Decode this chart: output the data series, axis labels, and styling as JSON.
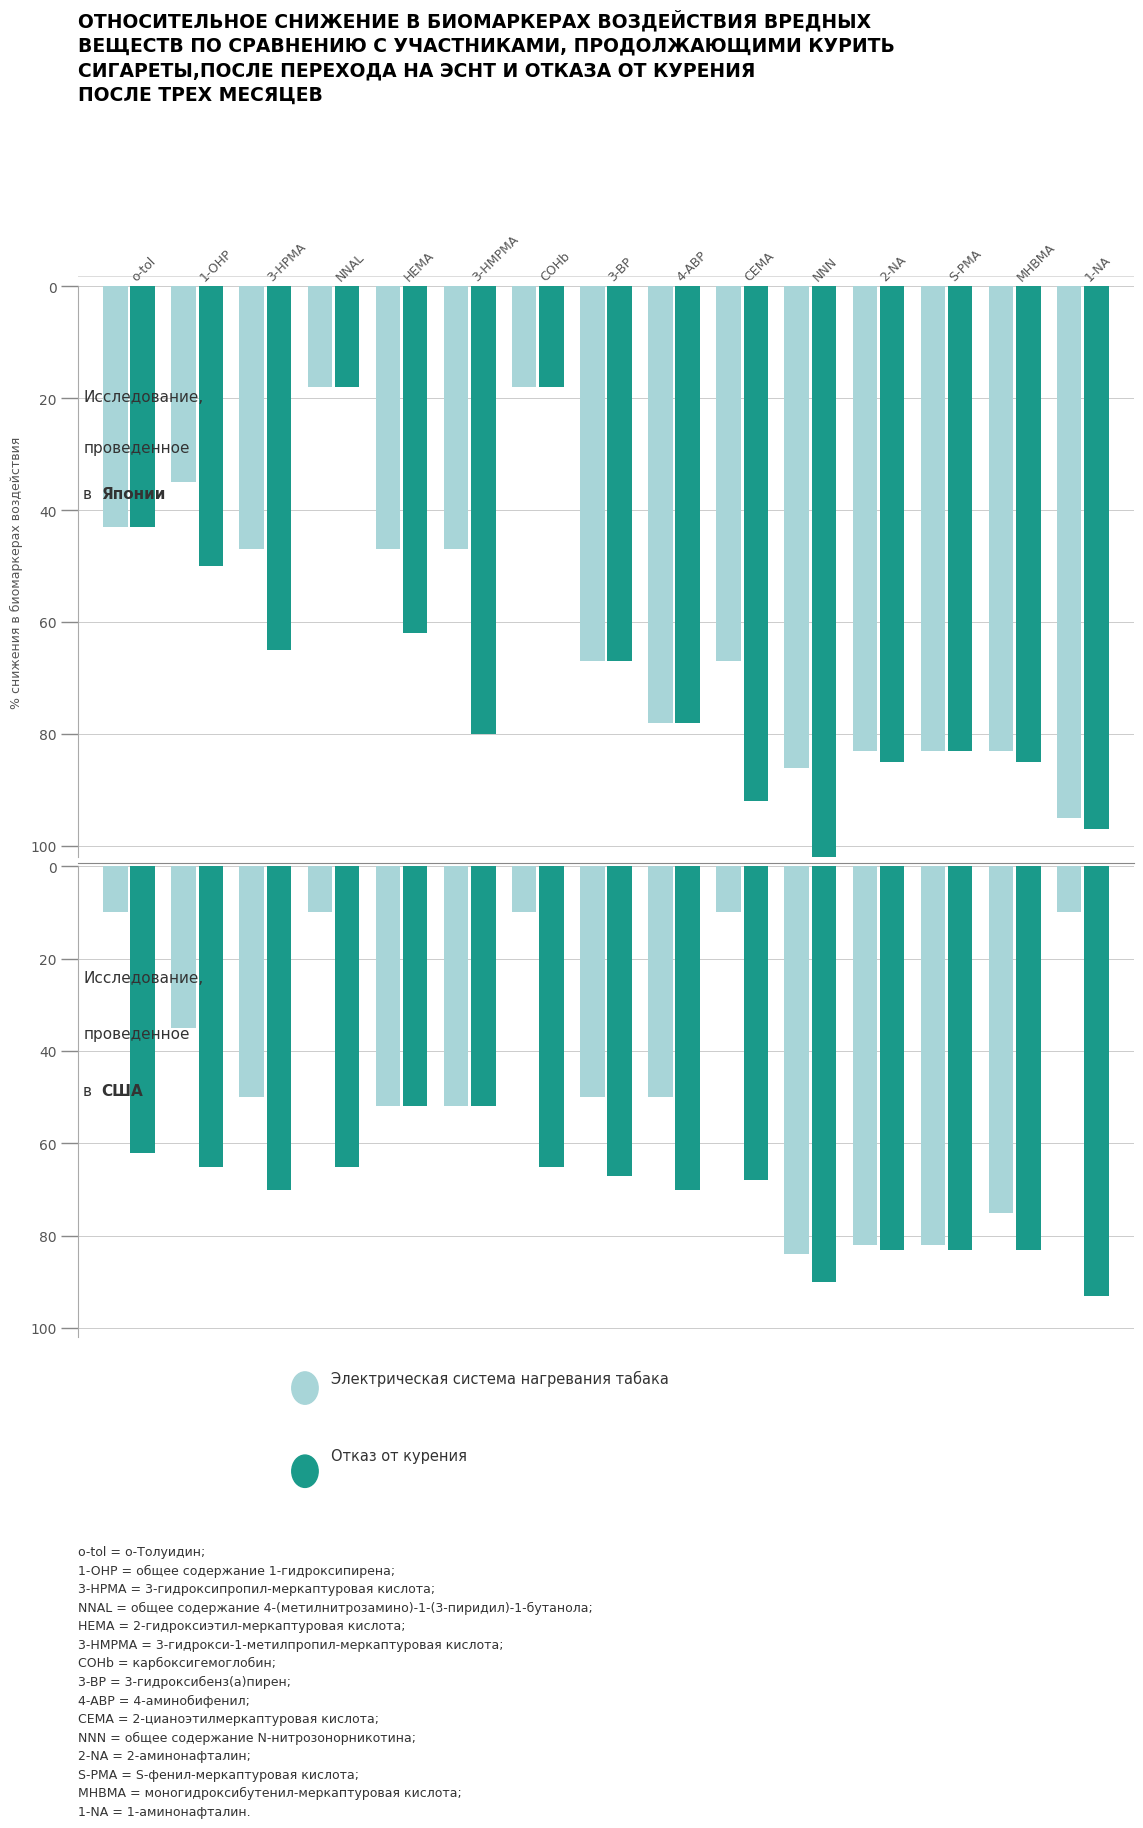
{
  "title": "ОТНОСИТЕЛЬНОЕ СНИЖЕНИЕ В БИОМАРКЕРАХ ВОЗДЕЙСТВИЯ ВРЕДНЫХ\nВЕЩЕСТВ ПО СРАВНЕНИЮ С УЧАСТНИКАМИ, ПРОДОЛЖАЮЩИМИ КУРИТЬ\nСИГАРЕТЫ,ПОСЛЕ ПЕРЕХОДА НА ЭСНТ И ОТКАЗА ОТ КУРЕНИЯ\nПОСЛЕ ТРЕХ МЕСЯЦЕВ",
  "categories": [
    "o-tol",
    "1-OHP",
    "3-HPMA",
    "NNAL",
    "HEMA",
    "3-HMPMA",
    "COHb",
    "3-BP",
    "4-ABP",
    "CEMA",
    "NNN",
    "2-NA",
    "S-PMA",
    "MHBMA",
    "1-NA"
  ],
  "japan_iqos": [
    43,
    35,
    47,
    18,
    47,
    47,
    18,
    67,
    78,
    67,
    86,
    83,
    83,
    83,
    95
  ],
  "japan_quit": [
    43,
    50,
    65,
    18,
    62,
    80,
    18,
    67,
    78,
    92,
    102,
    85,
    83,
    85,
    97
  ],
  "usa_iqos": [
    10,
    35,
    50,
    10,
    52,
    52,
    10,
    50,
    50,
    10,
    84,
    82,
    82,
    75,
    10
  ],
  "usa_quit": [
    62,
    65,
    70,
    65,
    52,
    52,
    65,
    67,
    70,
    68,
    90,
    83,
    83,
    83,
    93
  ],
  "color_iqos": "#a8d5d8",
  "color_quit": "#1a9a8a",
  "ylabel": "% снижения в биомаркерах воздействия",
  "label_iqos": "Электрическая система нагревания табака",
  "label_quit": "Отказ от курения",
  "footnote": "o-tol = о-Толуидин;\n1-OHP = общее содержание 1-гидроксипирена;\n3-HPMA = 3-гидроксипропил-меркаптуровая кислота;\nNNAL = общее содержание 4-(метилнитрозамино)-1-(3-пиридил)-1-бутанола;\nHEMA = 2-гидроксиэтил-меркаптуровая кислота;\n3-HMPMA = 3-гидрокси-1-метилпропил-меркаптуровая кислота;\nCOHb = карбоксигемоглобин;\n3-BP = 3-гидроксибенз(а)пирен;\n4-ABP = 4-аминобифенил;\nCEMA = 2-цианоэтилмеркаптуровая кислота;\nNNN = общее содержание N-нитрозонорникотина;\n2-NA = 2-аминонафталин;\nS-PMA = S-фенил-меркаптуровая кислота;\nMHBMA = моногидроксибутенил-меркаптуровая кислота;\n1-NA = 1-аминонафталин.",
  "background_color": "#ffffff"
}
